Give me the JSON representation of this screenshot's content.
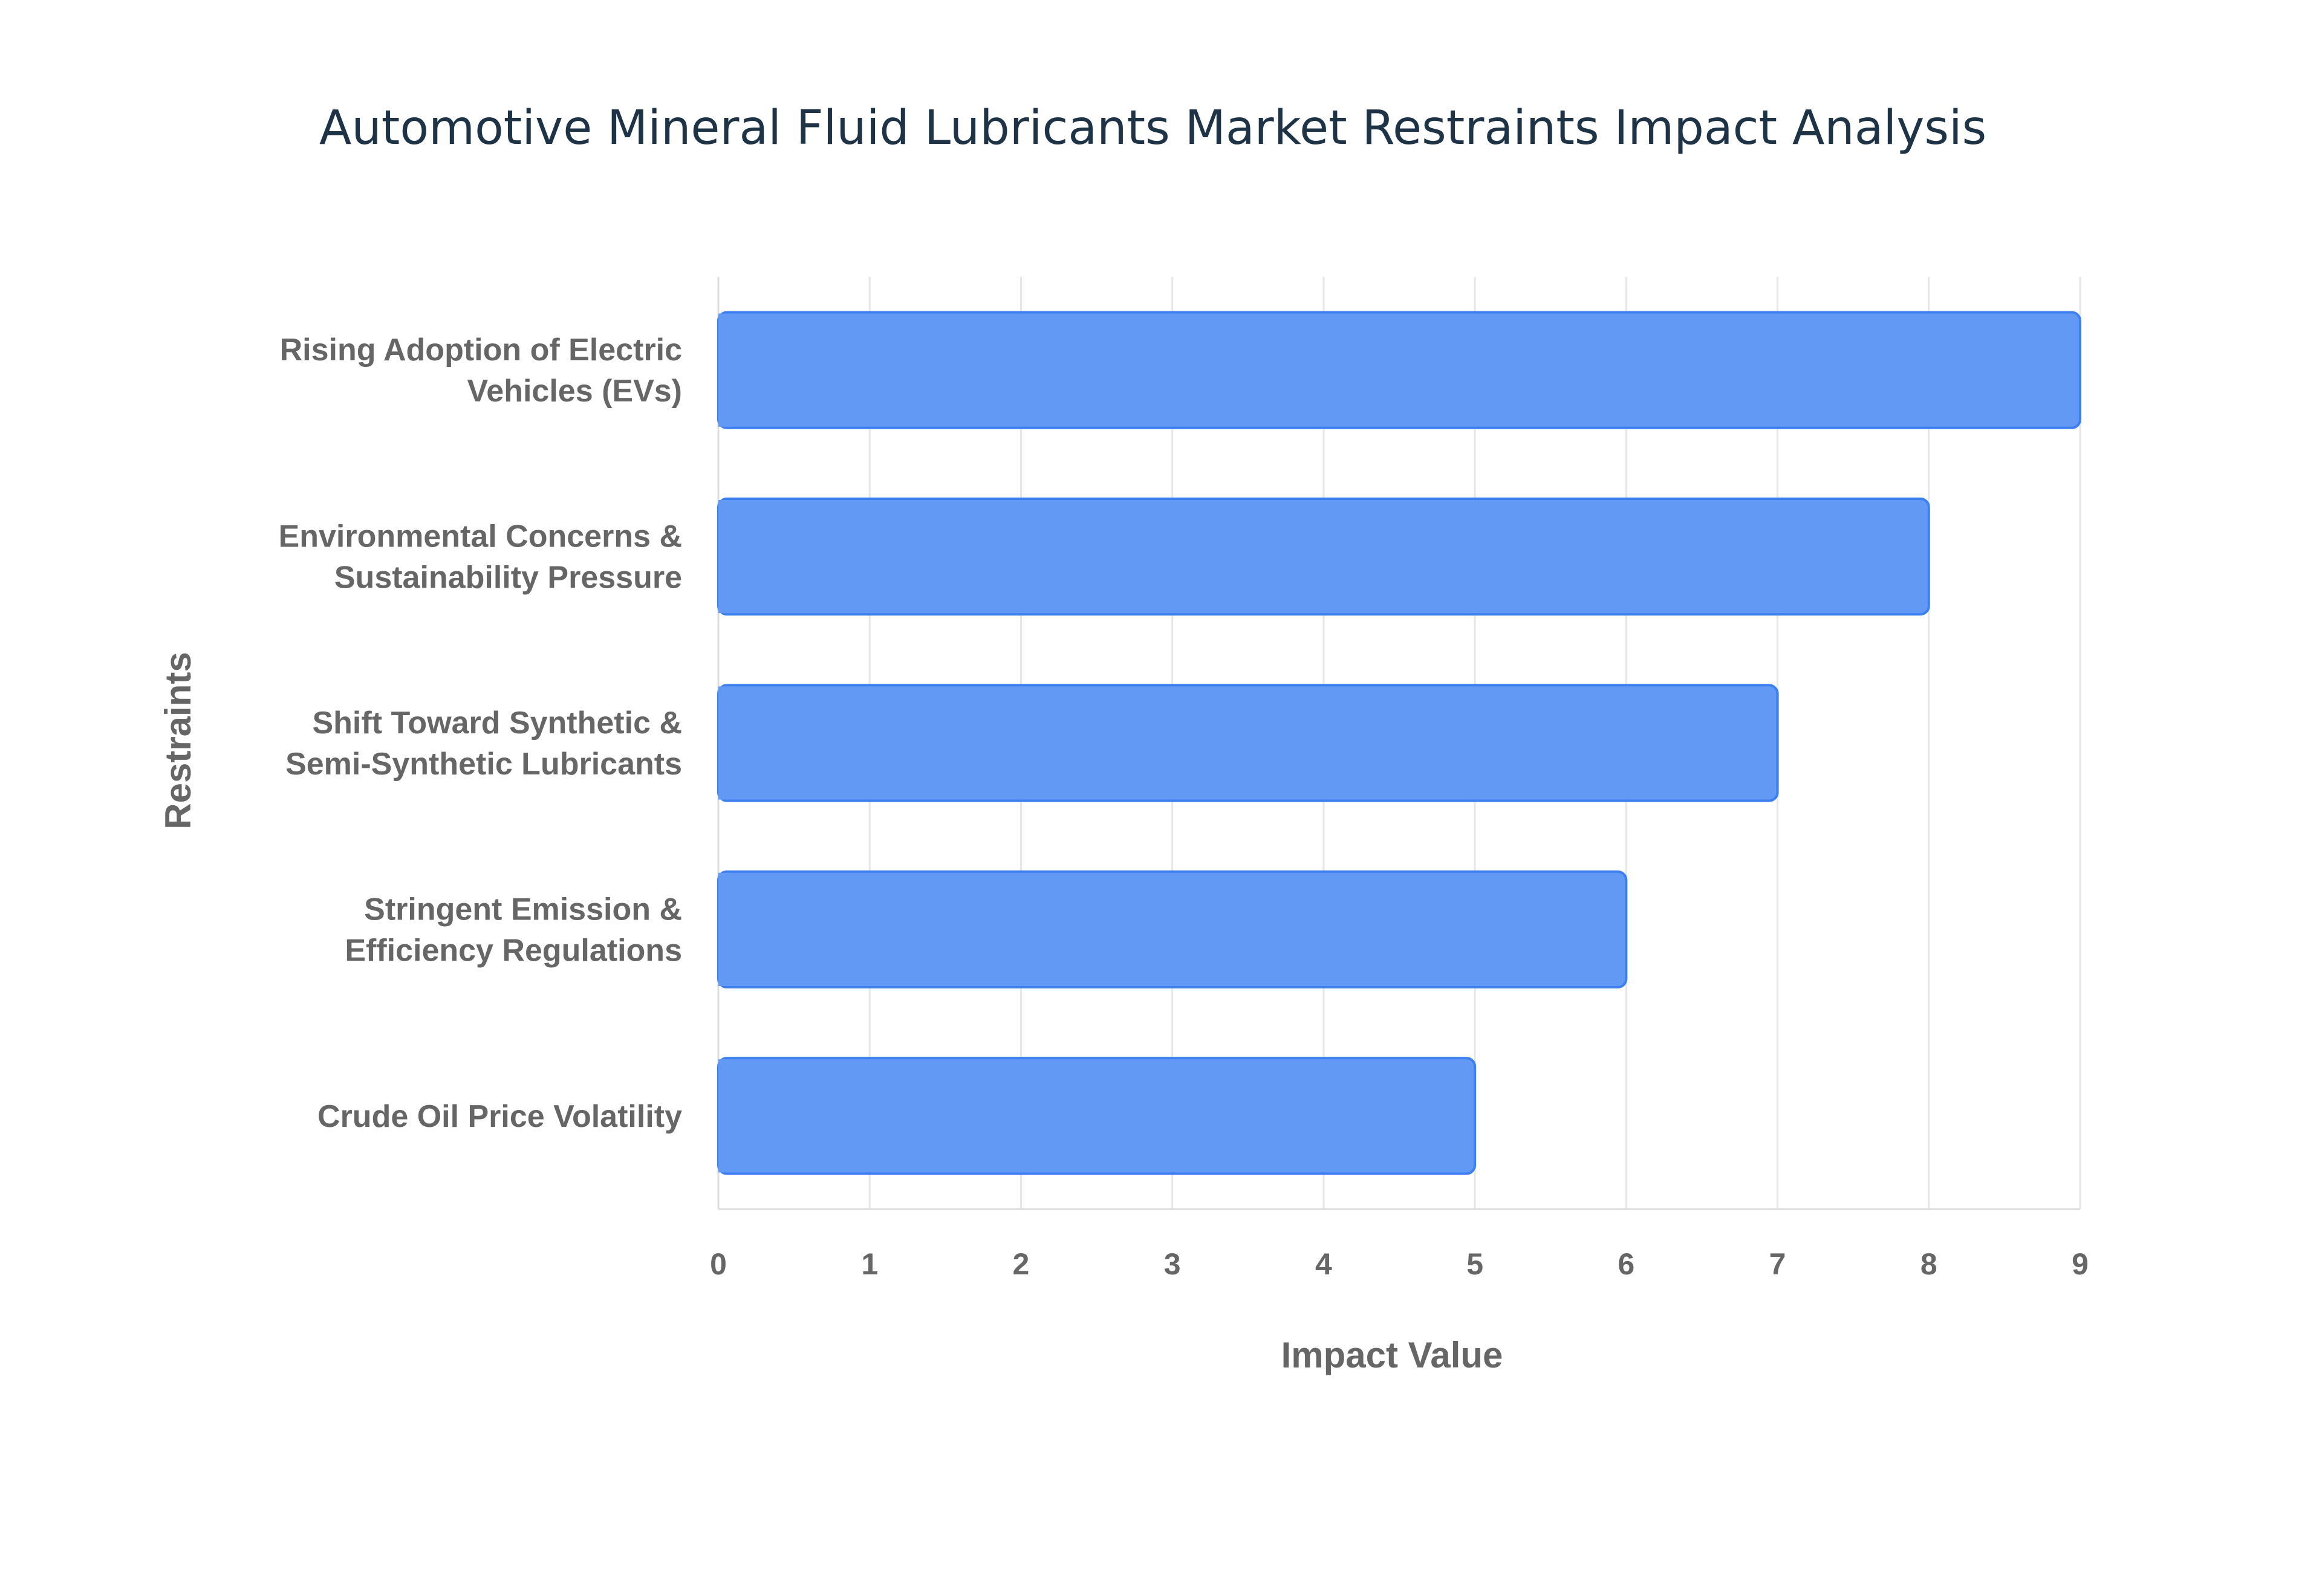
{
  "chart_data": {
    "type": "bar",
    "orientation": "horizontal",
    "title": "Automotive Mineral Fluid Lubricants Market Restraints Impact Analysis",
    "xlabel": "Impact Value",
    "ylabel": "Restraints",
    "xlim": [
      0,
      9
    ],
    "x_ticks": [
      "0",
      "1",
      "2",
      "3",
      "4",
      "5",
      "6",
      "7",
      "8",
      "9"
    ],
    "grid": true,
    "categories": [
      [
        "Rising Adoption of Electric",
        "Vehicles (EVs)"
      ],
      [
        "Environmental Concerns &",
        "Sustainability Pressure"
      ],
      [
        "Shift Toward Synthetic &",
        "Semi-Synthetic Lubricants"
      ],
      [
        "Stringent Emission &",
        "Efficiency Regulations"
      ],
      [
        "Crude Oil Price Volatility"
      ]
    ],
    "values": [
      9,
      8,
      7,
      6,
      5
    ],
    "colors": {
      "bar_fill": "#6199f5",
      "bar_stroke": "#3d7ef0"
    }
  }
}
